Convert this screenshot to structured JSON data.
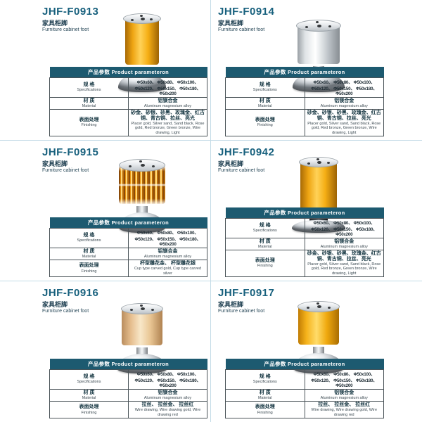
{
  "colors": {
    "table_header_bg": "#1d5a70",
    "table_border": "#4a5358",
    "title_text": "#17607d",
    "cell_divider": "#c3dbe7",
    "gold_body": "#f3a81d",
    "chrome_body": "#d9dde1",
    "carved_gold_body": "#e8920f",
    "champagne_body": "#ecc999"
  },
  "table_labels": {
    "header": "产品参数 Product parameteron",
    "spec_cn": "规 格",
    "spec_en": "Specifications",
    "material_cn": "材 质",
    "material_en": "Material",
    "finish_cn": "表面处理",
    "finish_en": "Finishing"
  },
  "products": [
    {
      "code": "JHF-F0913",
      "name_cn": "家具柜脚",
      "name_en": "Furniture cabinet foot",
      "photo_variant": "gold cylinder, chrome cap, chrome dome base",
      "specs": "Φ50x60、 Φ50x80、 Φ50x100、 Φ50x120、 Φ50x150、 Φ50x180、 Φ50x200",
      "material_cn": "铝镁合金",
      "material_en": "Aluminum magnesium alloy",
      "finish_cn": "砂金、砂银、砂黑、玫瑰金、红古铜、青古铜、拉丝、亮光",
      "finish_en": "Placer gold, Silver sand, Sand black, Rose gold, Red bronze, Green bronze, Wire drawing, Light"
    },
    {
      "code": "JHF-F0914",
      "name_cn": "家具柜脚",
      "name_en": "Furniture cabinet foot",
      "photo_variant": "chrome cylinder, chrome dome base",
      "specs": "Φ50x60、 Φ50x80、 Φ50x100、 Φ50x120、 Φ50x150、 Φ50x180、 Φ50x200",
      "material_cn": "铝镁合金",
      "material_en": "Aluminum magnesium alloy",
      "finish_cn": "砂金、砂银、砂黑、玫瑰金、红古铜、青古铜、拉丝、亮光",
      "finish_en": "Placer gold, Silver sand, Sand black, Rose gold, Red bronze, Green bronze, Wire drawing, Light"
    },
    {
      "code": "JHF-F0915",
      "name_cn": "家具柜脚",
      "name_en": "Furniture cabinet foot",
      "photo_variant": "carved perforated gold cylinder, chrome dome base",
      "specs": "Φ50x60、 Φ50x80、 Φ50x100、 Φ50x120、 Φ50x150、 Φ50x180、 Φ50x200",
      "material_cn": "铝镁合金",
      "material_en": "Aluminum magnesium alloy",
      "finish_cn": "杯型雕花金、 杯型雕花银",
      "finish_en": "Cup type carved gold, Cup type carved silver"
    },
    {
      "code": "JHF-F0942",
      "name_cn": "家具柜脚",
      "name_en": "Furniture cabinet foot",
      "photo_variant": "tall gold cylinder, chrome cap, flat chrome base",
      "specs": "Φ50x60、 Φ50x80、 Φ50x100、 Φ50x120、 Φ50x150、 Φ50x180、 Φ50x200",
      "material_cn": "铝镁合金",
      "material_en": "Aluminum magnesium alloy",
      "finish_cn": "砂金、砂银、砂黑、玫瑰金、红古铜、青古铜、拉丝、亮光",
      "finish_en": "Placer gold, Silver sand, Sand black, Rose gold, Red bronze, Green bronze, Wire drawing, Light"
    },
    {
      "code": "JHF-F0916",
      "name_cn": "家具柜脚",
      "name_en": "Furniture cabinet foot",
      "photo_variant": "champagne gold cylinder, chrome dome base",
      "specs": "Φ50x60、 Φ50x80、 Φ50x100、 Φ50x120、 Φ50x150、 Φ50x180、 Φ50x200",
      "material_cn": "铝镁合金",
      "material_en": "Aluminum magnesium alloy",
      "finish_cn": "拉丝、 拉丝金、 拉丝红",
      "finish_en": "Wire drawing, Wire drawing gold, Wire drawing red"
    },
    {
      "code": "JHF-F0917",
      "name_cn": "家具柜脚",
      "name_en": "Furniture cabinet foot",
      "photo_variant": "bright gold cylinder, chrome dome base",
      "specs": "Φ50x60、 Φ50x80、 Φ50x100、 Φ50x120、 Φ50x150、 Φ50x180、 Φ50x200",
      "material_cn": "铝镁合金",
      "material_en": "Aluminum magnesium alloy",
      "finish_cn": "拉丝、 拉丝金、 拉丝红",
      "finish_en": "Wire drawing, Wire drawing gold, Wire drawing red"
    }
  ]
}
